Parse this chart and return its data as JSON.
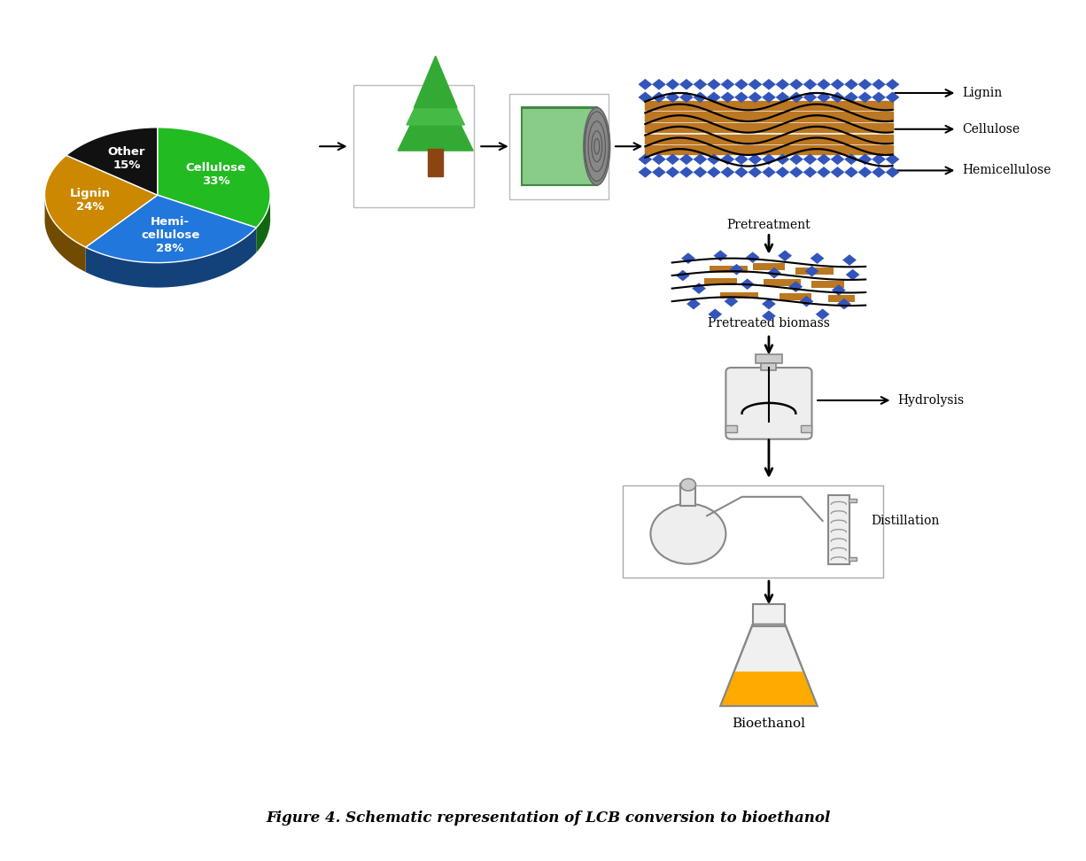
{
  "pie_values": [
    33,
    28,
    24,
    15
  ],
  "pie_labels": [
    "Cellulose\n33%",
    "Hemi-\ncellulose\n28%",
    "Lignin\n24%",
    "Other\n15%"
  ],
  "pie_colors": [
    "#22bb22",
    "#2277dd",
    "#cc8800",
    "#111111"
  ],
  "pie_startangle_deg": 90,
  "title": "Figure 4. Schematic representation of LCB conversion to bioethanol",
  "flow_labels": [
    "Pretreatment",
    "Pretreated biomass",
    "Hydrolysis",
    "Distillation",
    "Bioethanol"
  ],
  "component_labels": [
    "Lignin",
    "Cellulose",
    "Hemicellulose"
  ],
  "background_color": "#ffffff",
  "label_fontsize": 10,
  "title_fontsize": 12,
  "blue_diamond_color": "#3355bb",
  "brown_bar_color": "#bb7722",
  "arrow_color": "#111111"
}
